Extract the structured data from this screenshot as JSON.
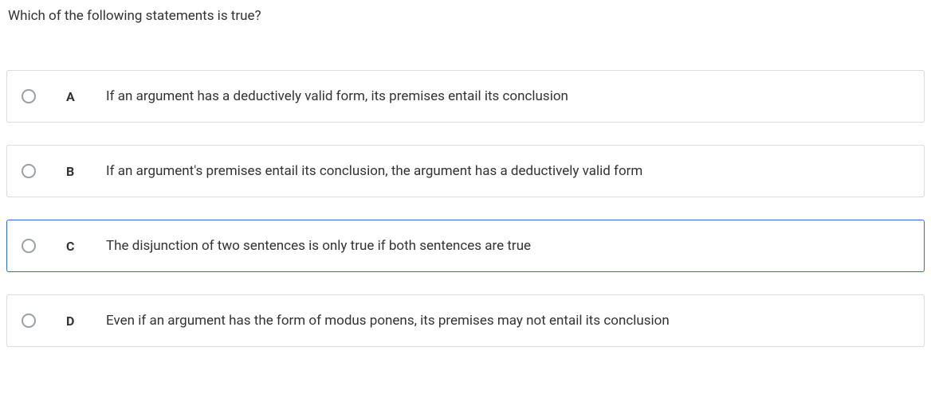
{
  "question": {
    "prompt": "Which of the following statements is true?"
  },
  "options": [
    {
      "letter": "A",
      "text": "If an argument has a deductively valid form, its premises entail its conclusion",
      "selected": false
    },
    {
      "letter": "B",
      "text": "If an argument's premises entail its conclusion, the argument has a deductively valid form",
      "selected": false
    },
    {
      "letter": "C",
      "text": "The disjunction of two sentences is only true if both sentences are true",
      "selected": true
    },
    {
      "letter": "D",
      "text": "Even if an argument has the form of modus ponens, its premises may not entail its conclusion",
      "selected": false
    }
  ],
  "colors": {
    "border_default": "#d8dbe0",
    "border_selected": "#2d6cdf",
    "radio_border": "#9aa0a6",
    "text": "#333333",
    "background": "#ffffff"
  },
  "typography": {
    "question_fontsize": 17,
    "option_fontsize": 17,
    "letter_fontweight": 700
  }
}
